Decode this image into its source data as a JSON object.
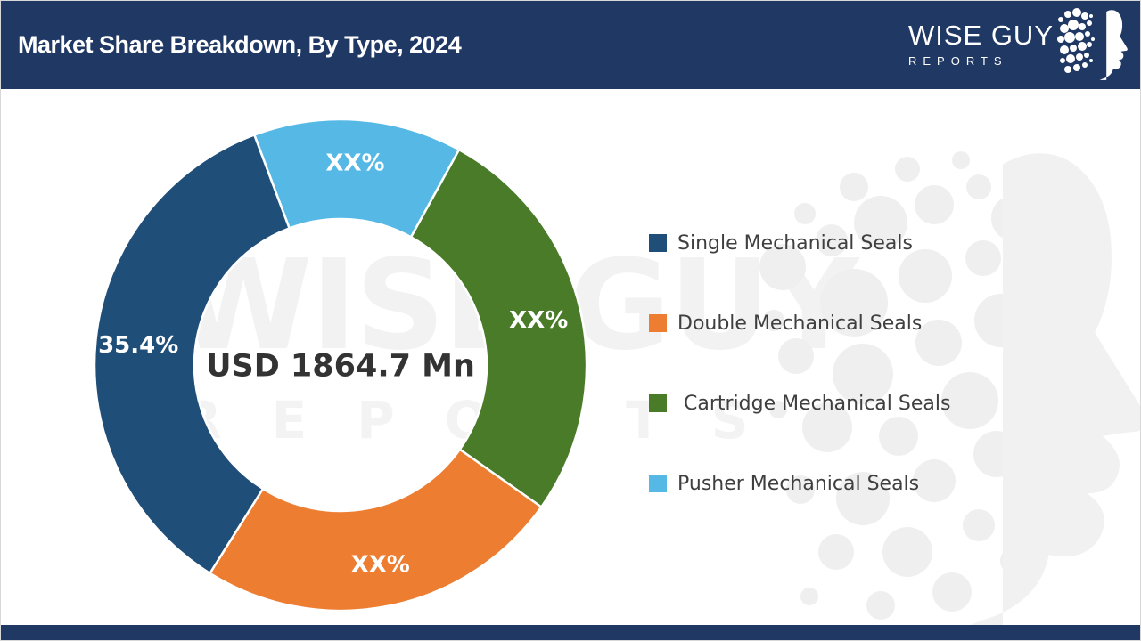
{
  "header": {
    "title": "Market Share Breakdown, By Type, 2024",
    "logo_line1": "WISE GUY",
    "logo_line2": "REPORTS"
  },
  "watermark": {
    "line1": "WISE GUY",
    "line2": "REPORTS"
  },
  "chart_data": {
    "type": "pie",
    "subtype": "donut",
    "title": "Market Share Breakdown, By Type, 2024",
    "center_label": "USD 1864.7 Mn",
    "start_angle_deg": -20.5,
    "inner_radius_ratio": 0.595,
    "legend_position": "right",
    "segments": [
      {
        "name": "Pusher Mechanical Seals",
        "value_pct": 13.7,
        "slice_label": "XX%",
        "color": "#55b8e5"
      },
      {
        "name": "Cartridge Mechanical Seals",
        "value_pct": 26.8,
        "slice_label": "XX%",
        "color": "#497b28"
      },
      {
        "name": "Double Mechanical Seals",
        "value_pct": 24.1,
        "slice_label": "XX%",
        "color": "#ed7d31"
      },
      {
        "name": "Single Mechanical Seals",
        "value_pct": 35.4,
        "slice_label": "35.4%",
        "color": "#1f4e79"
      }
    ],
    "legend_order": [
      "Single Mechanical Seals",
      "Double Mechanical Seals",
      " Cartridge Mechanical Seals",
      "Pusher Mechanical Seals"
    ]
  },
  "colors": {
    "header_bg": "#203864",
    "footer_bg": "#203864",
    "center_label_color": "#333333",
    "legend_text": "#3f3f3f",
    "watermark": "#f2f2f2",
    "page_border": "#d8d8d8"
  }
}
